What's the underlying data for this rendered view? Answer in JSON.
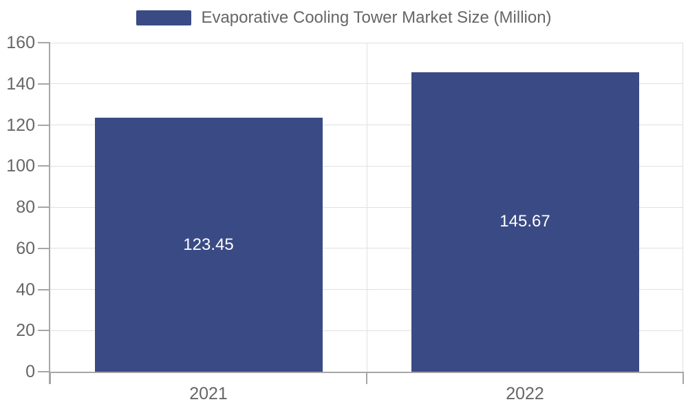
{
  "chart_data": {
    "type": "bar",
    "title": "Evaporative Cooling Tower Market Size (Million)",
    "categories": [
      "2021",
      "2022"
    ],
    "values": [
      123.45,
      145.67
    ],
    "value_labels": [
      "123.45",
      "145.67"
    ],
    "xlabel": "",
    "ylabel": "",
    "ylim": [
      0,
      160
    ],
    "yticks": [
      0,
      20,
      40,
      60,
      80,
      100,
      120,
      140,
      160
    ],
    "ytick_labels": [
      "0",
      "20",
      "40",
      "60",
      "80",
      "100",
      "120",
      "140",
      "160"
    ],
    "grid": true,
    "legend_position": "top-center",
    "value_label_position": "inside-center",
    "colors": {
      "bar": "#3a4a84",
      "grid": "#e0e0e0",
      "axis": "#a6a6a6",
      "tick_text": "#666666",
      "value_text": "#ffffff",
      "background": "#ffffff"
    }
  }
}
